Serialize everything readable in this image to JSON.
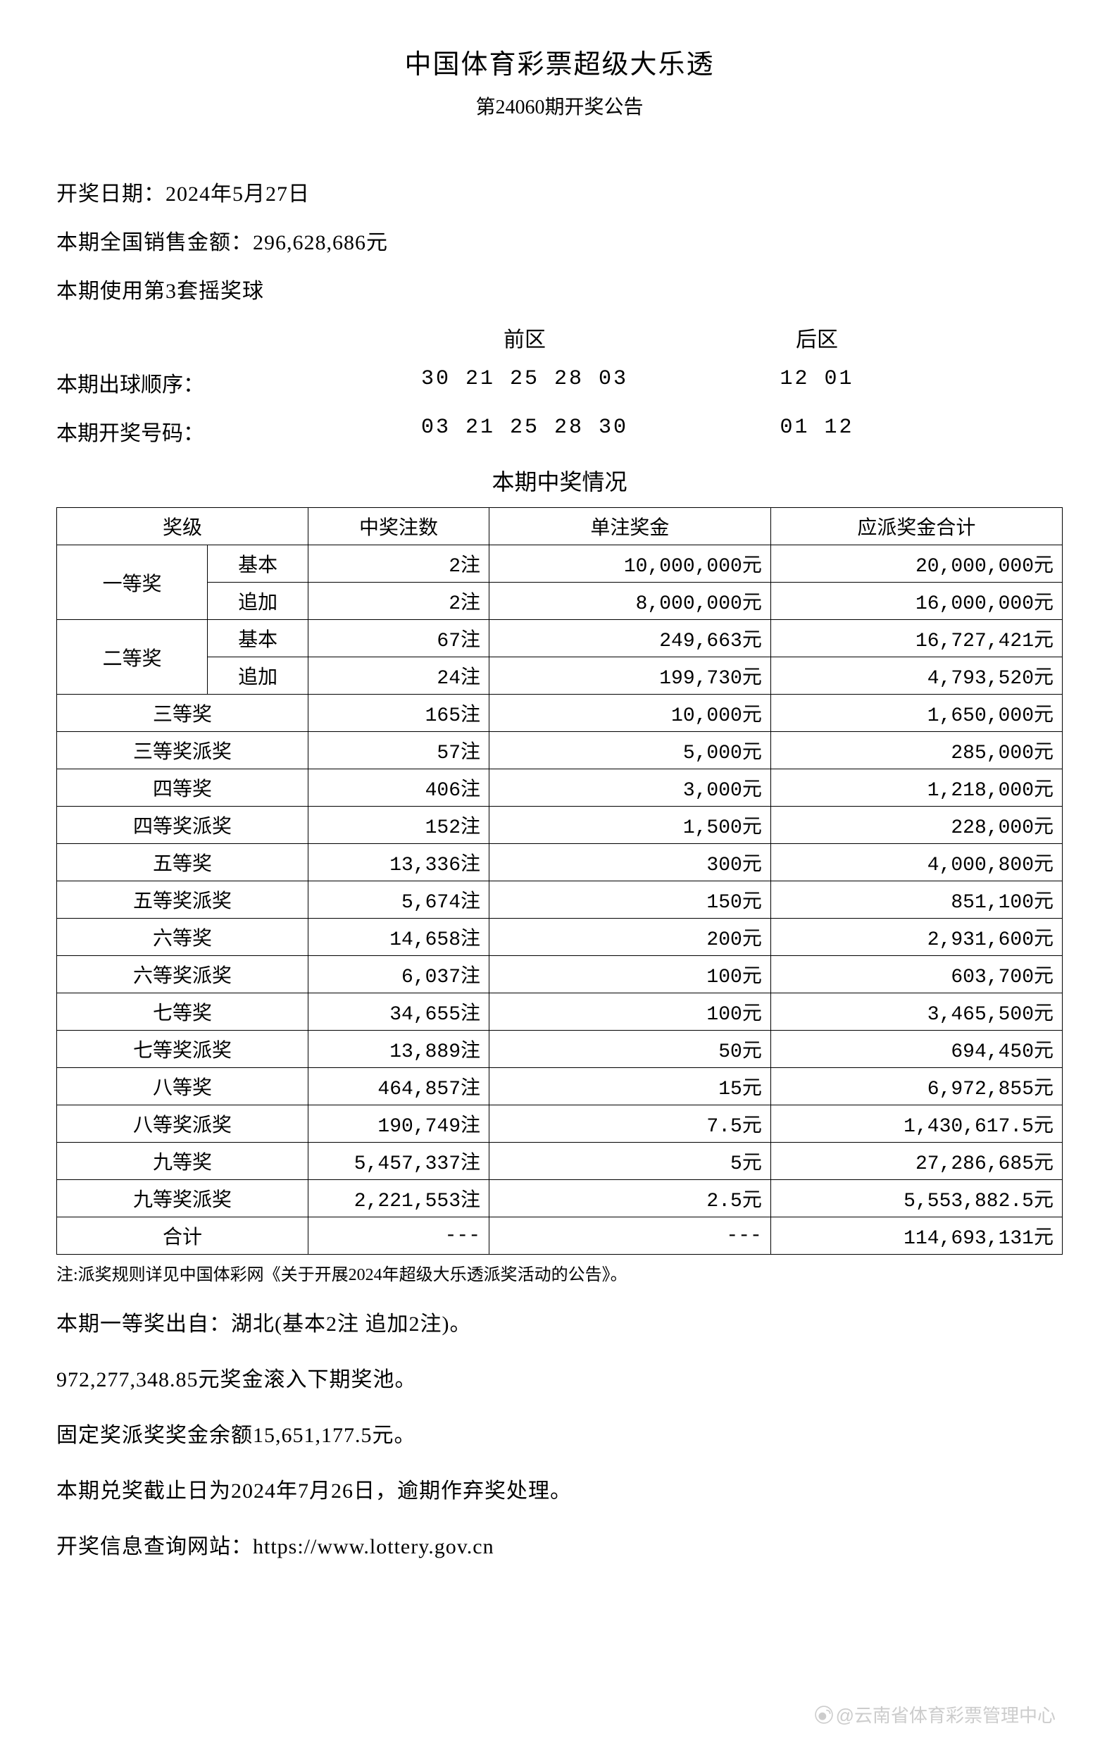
{
  "header": {
    "title_main": "中国体育彩票超级大乐透",
    "title_sub": "第24060期开奖公告"
  },
  "info": {
    "draw_date": "开奖日期：2024年5月27日",
    "sales_amount": "本期全国销售金额：296,628,686元",
    "ball_set": "本期使用第3套摇奖球"
  },
  "zones": {
    "front_label": "前区",
    "back_label": "后区",
    "draw_order_label": "本期出球顺序：",
    "draw_order_front": "30 21 25 28 03",
    "draw_order_back": "12 01",
    "winning_label": "本期开奖号码：",
    "winning_front": "03 21 25 28 30",
    "winning_back": "01 12"
  },
  "table": {
    "section_title": "本期中奖情况",
    "headers": {
      "level": "奖级",
      "count": "中奖注数",
      "amount": "单注奖金",
      "total": "应派奖金合计"
    },
    "prize1": {
      "label": "一等奖",
      "basic_label": "基本",
      "basic_count": "2注",
      "basic_amount": "10,000,000元",
      "basic_total": "20,000,000元",
      "addon_label": "追加",
      "addon_count": "2注",
      "addon_amount": "8,000,000元",
      "addon_total": "16,000,000元"
    },
    "prize2": {
      "label": "二等奖",
      "basic_label": "基本",
      "basic_count": "67注",
      "basic_amount": "249,663元",
      "basic_total": "16,727,421元",
      "addon_label": "追加",
      "addon_count": "24注",
      "addon_amount": "199,730元",
      "addon_total": "4,793,520元"
    },
    "rows": [
      {
        "label": "三等奖",
        "count": "165注",
        "amount": "10,000元",
        "total": "1,650,000元"
      },
      {
        "label": "三等奖派奖",
        "count": "57注",
        "amount": "5,000元",
        "total": "285,000元"
      },
      {
        "label": "四等奖",
        "count": "406注",
        "amount": "3,000元",
        "total": "1,218,000元"
      },
      {
        "label": "四等奖派奖",
        "count": "152注",
        "amount": "1,500元",
        "total": "228,000元"
      },
      {
        "label": "五等奖",
        "count": "13,336注",
        "amount": "300元",
        "total": "4,000,800元"
      },
      {
        "label": "五等奖派奖",
        "count": "5,674注",
        "amount": "150元",
        "total": "851,100元"
      },
      {
        "label": "六等奖",
        "count": "14,658注",
        "amount": "200元",
        "total": "2,931,600元"
      },
      {
        "label": "六等奖派奖",
        "count": "6,037注",
        "amount": "100元",
        "total": "603,700元"
      },
      {
        "label": "七等奖",
        "count": "34,655注",
        "amount": "100元",
        "total": "3,465,500元"
      },
      {
        "label": "七等奖派奖",
        "count": "13,889注",
        "amount": "50元",
        "total": "694,450元"
      },
      {
        "label": "八等奖",
        "count": "464,857注",
        "amount": "15元",
        "total": "6,972,855元"
      },
      {
        "label": "八等奖派奖",
        "count": "190,749注",
        "amount": "7.5元",
        "total": "1,430,617.5元"
      },
      {
        "label": "九等奖",
        "count": "5,457,337注",
        "amount": "5元",
        "total": "27,286,685元"
      },
      {
        "label": "九等奖派奖",
        "count": "2,221,553注",
        "amount": "2.5元",
        "total": "5,553,882.5元"
      }
    ],
    "total_row": {
      "label": "合计",
      "count": "---",
      "amount": "---",
      "total": "114,693,131元"
    }
  },
  "footnote": "注:派奖规则详见中国体彩网《关于开展2024年超级大乐透派奖活动的公告》。",
  "bottom": {
    "line1": "本期一等奖出自：湖北(基本2注 追加2注)。",
    "line2": "972,277,348.85元奖金滚入下期奖池。",
    "line3": "固定奖派奖奖金余额15,651,177.5元。",
    "line4": "本期兑奖截止日为2024年7月26日，逾期作弃奖处理。",
    "line5": "开奖信息查询网站：https://www.lottery.gov.cn"
  },
  "watermark": "@云南省体育彩票管理中心"
}
